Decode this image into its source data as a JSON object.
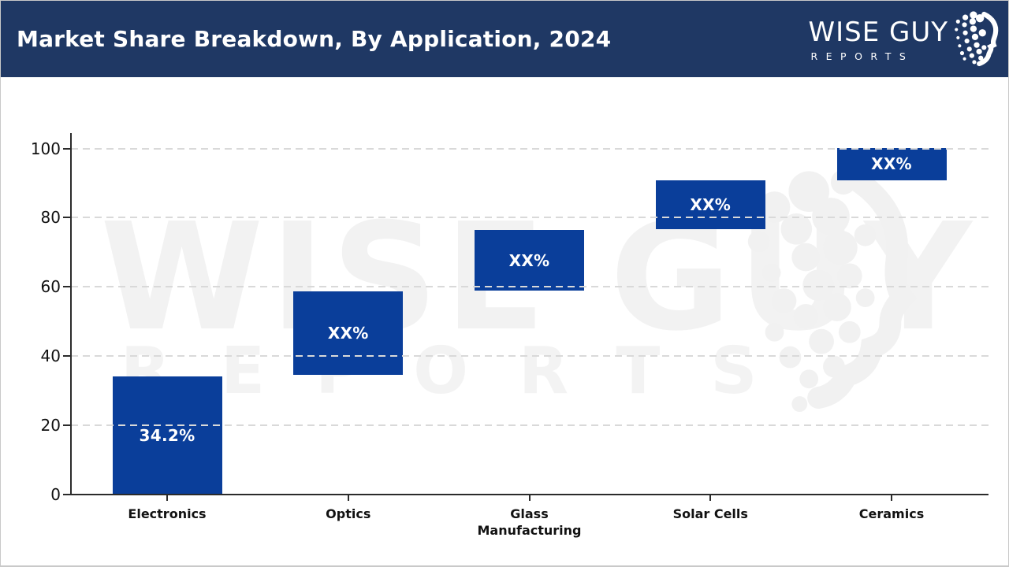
{
  "header": {
    "title": "Market Share Breakdown, By Application, 2024",
    "brand": {
      "name": "WISE GUY",
      "tagline": "REPORTS"
    }
  },
  "watermark": {
    "line1": "WISE GUY",
    "line2": "REPORTS"
  },
  "colors": {
    "header_bg": "#1f3864",
    "bar": "#0a3e9a",
    "bar_label": "#ffffff",
    "grid": "#d9d9d9",
    "axis": "#2b2b2b"
  },
  "chart_data": {
    "type": "bar",
    "subtype": "floating-waterfall",
    "title": "Market Share Breakdown, By Application, 2024",
    "unit": "%",
    "categories": [
      "Electronics",
      "Optics",
      "Glass Manufacturing",
      "Solar Cells",
      "Ceramics"
    ],
    "series": [
      {
        "name": "Market Share (%)",
        "segments": [
          {
            "category": "Electronics",
            "start": 0,
            "end": 34.2,
            "label": "34.2%"
          },
          {
            "category": "Optics",
            "start": 34.5,
            "end": 58.6,
            "label": "XX%"
          },
          {
            "category": "Glass Manufacturing",
            "start": 58.9,
            "end": 76.4,
            "label": "XX%"
          },
          {
            "category": "Solar Cells",
            "start": 76.6,
            "end": 90.7,
            "label": "XX%"
          },
          {
            "category": "Ceramics",
            "start": 90.9,
            "end": 100.2,
            "label": "XX%"
          }
        ]
      }
    ],
    "yticks": [
      0,
      20,
      40,
      60,
      80,
      100
    ],
    "ylim": [
      0,
      104
    ],
    "xlabel": "",
    "ylabel": "",
    "grid": "horizontal-dashed",
    "legend": "none"
  }
}
